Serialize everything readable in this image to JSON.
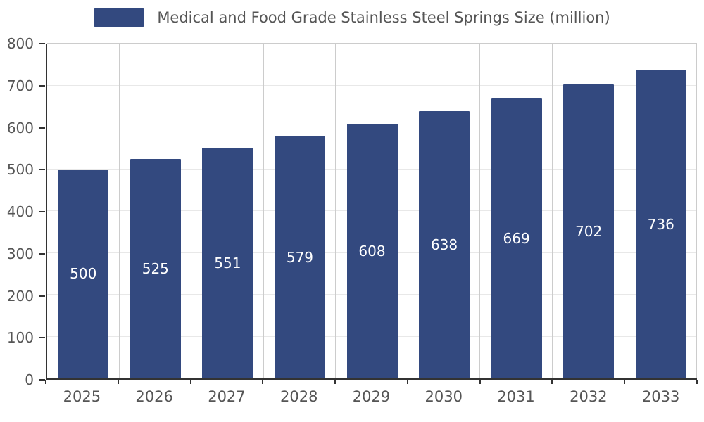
{
  "chart_data": {
    "type": "bar",
    "title": "Medical and Food Grade Stainless Steel Springs Size (million)",
    "categories": [
      "2025",
      "2026",
      "2027",
      "2028",
      "2029",
      "2030",
      "2031",
      "2032",
      "2033"
    ],
    "values": [
      500,
      525,
      551,
      579,
      608,
      638,
      669,
      702,
      736
    ],
    "xlabel": "",
    "ylabel": "",
    "ylim": [
      0,
      800
    ],
    "yticks": [
      0,
      100,
      200,
      300,
      400,
      500,
      600,
      700,
      800
    ],
    "grid": true,
    "legend_position": "top",
    "bar_color": "#33497f",
    "value_label_color": "#ffffff",
    "axis_text_color": "#555555"
  },
  "legend": {
    "label": "Medical and Food Grade Stainless Steel Springs Size (million)",
    "swatch_color": "#33497f"
  }
}
